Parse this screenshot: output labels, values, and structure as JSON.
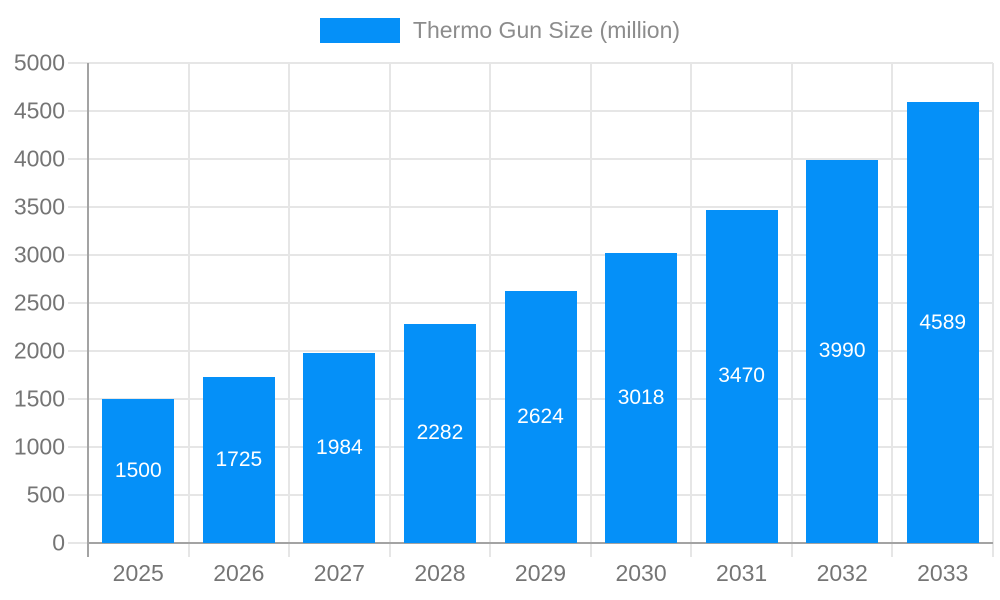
{
  "chart_data": {
    "type": "bar",
    "title": "",
    "xlabel": "",
    "ylabel": "",
    "categories": [
      "2025",
      "2026",
      "2027",
      "2028",
      "2029",
      "2030",
      "2031",
      "2032",
      "2033"
    ],
    "series": [
      {
        "name": "Thermo Gun Size (million)",
        "values": [
          1500,
          1725,
          1984,
          2282,
          2624,
          3018,
          3470,
          3990,
          4589
        ]
      }
    ],
    "ylim": [
      0,
      5000
    ],
    "ytick_step": 500,
    "ytick_labels": [
      "0",
      "500",
      "1000",
      "1500",
      "2000",
      "2500",
      "3000",
      "3500",
      "4000",
      "4500",
      "5000"
    ],
    "grid": true,
    "legend_position": "top",
    "value_label_position": "inside-center"
  },
  "colors": {
    "bar": "#0590f8",
    "grid": "#e6e6e6",
    "axis": "#a3a3a3",
    "axis_label": "#757575",
    "legend_label": "#8c8c8c",
    "value_label": "#ffffff",
    "background": "#ffffff"
  }
}
